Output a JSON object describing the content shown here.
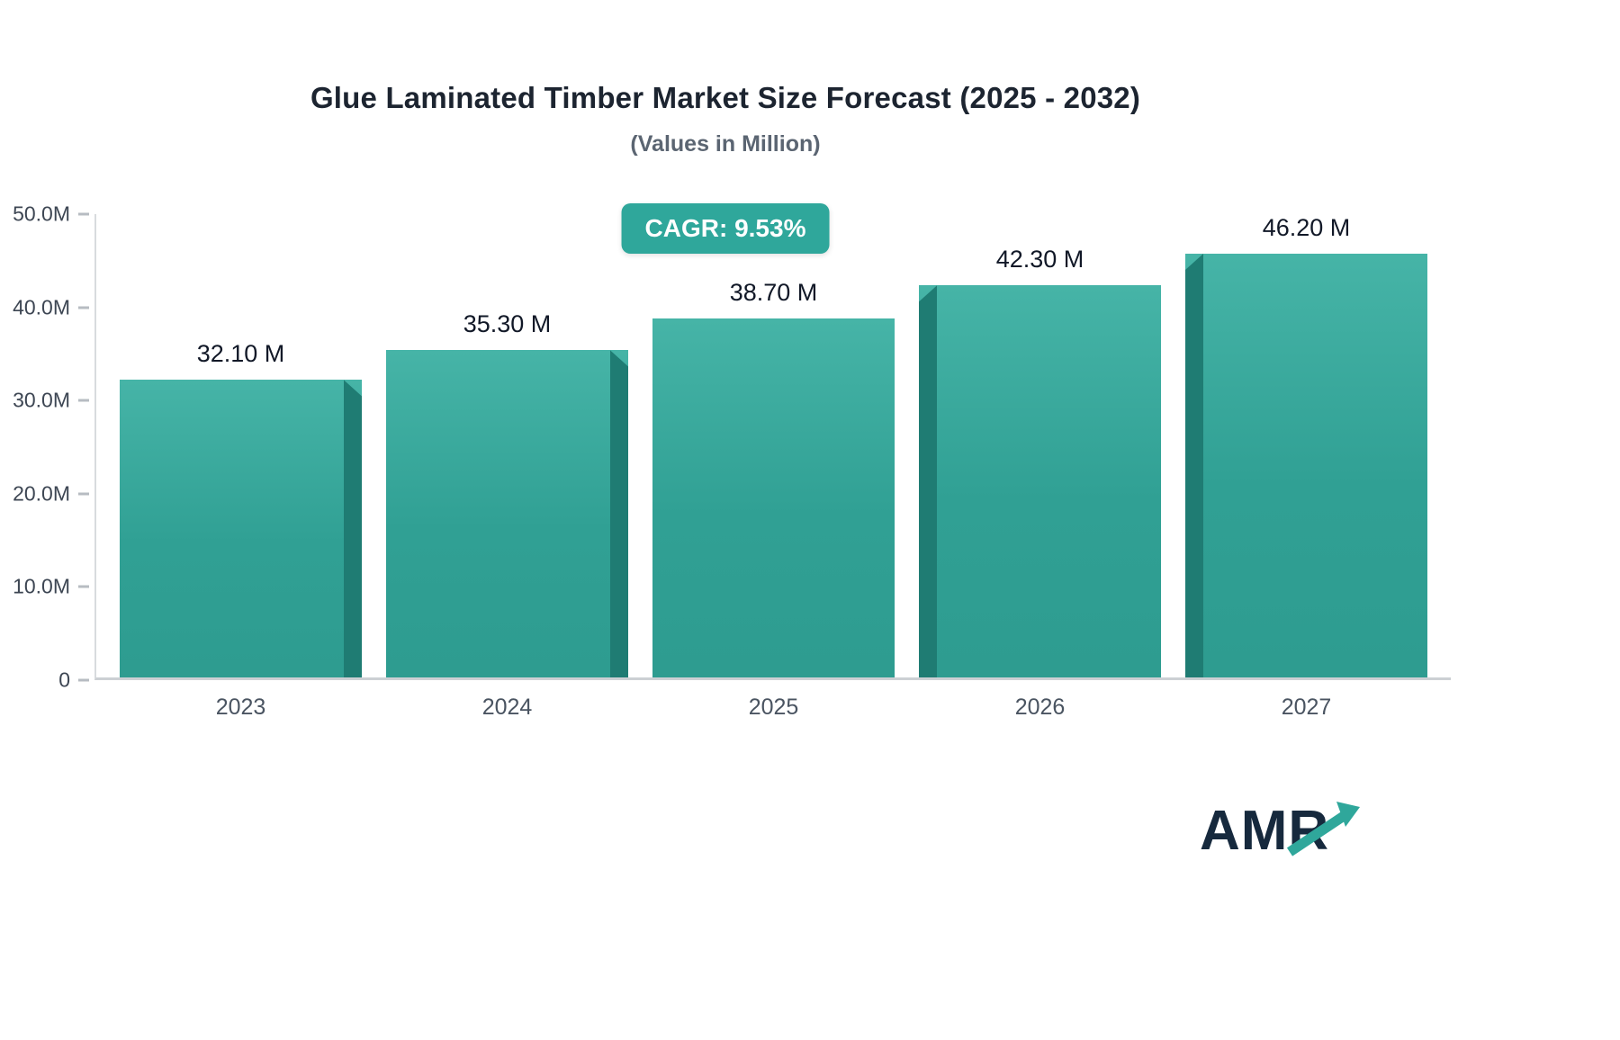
{
  "header": {
    "title": "Glue Laminated Timber Market Size Forecast (2025 - 2032)",
    "subtitle": "(Values in Million)",
    "cagr_badge": "CAGR: 9.53%"
  },
  "chart_data": {
    "type": "bar",
    "title": "Glue Laminated Timber Market Size Forecast (2025 - 2032)",
    "subtitle": "(Values in Million)",
    "categories": [
      "2023",
      "2024",
      "2025",
      "2026",
      "2027"
    ],
    "values": [
      32.1,
      35.3,
      38.7,
      42.3,
      46.2
    ],
    "value_labels": [
      "32.10 M",
      "35.30 M",
      "38.70 M",
      "42.30 M",
      "46.20 M"
    ],
    "y_ticks": [
      "50.0M",
      "40.0M",
      "30.0M",
      "20.0M",
      "10.0M",
      "0"
    ],
    "ylim": [
      0,
      50
    ],
    "xlabel": "",
    "ylabel": "",
    "grid": false,
    "legend": false,
    "annotation": "CAGR: 9.53%",
    "bar_color": "#2fa094",
    "bar_side_color": "#1f7c73",
    "badge_color": "#2fa79b"
  },
  "logo": {
    "text": "AMR"
  }
}
